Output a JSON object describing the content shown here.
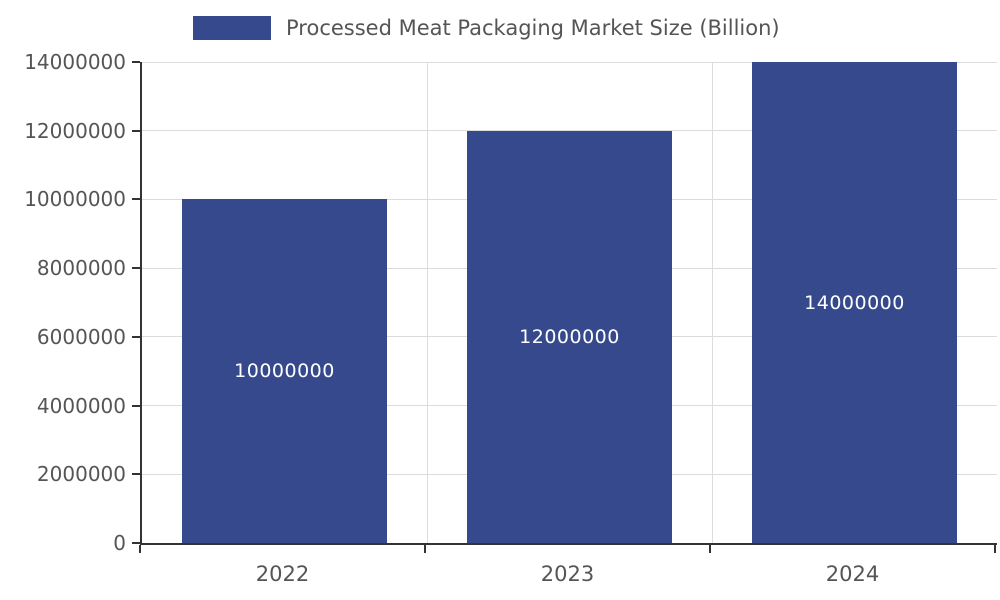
{
  "legend": {
    "label": "Processed Meat Packaging Market Size (Billion)"
  },
  "colors": {
    "bar": "#36498D",
    "grid": "#dcdcdc",
    "axis": "#333333",
    "tick_text": "#555555",
    "value_label": "#ffffff"
  },
  "chart_data": {
    "type": "bar",
    "title": "Processed Meat Packaging Market Size (Billion)",
    "categories": [
      "2022",
      "2023",
      "2024"
    ],
    "values": [
      10000000,
      12000000,
      14000000
    ],
    "bar_labels": [
      "10000000",
      "12000000",
      "14000000"
    ],
    "xlabel": "",
    "ylabel": "",
    "ylim": [
      0,
      14000000
    ],
    "ytick_step": 2000000,
    "ytick_labels": [
      "0",
      "2000000",
      "4000000",
      "6000000",
      "8000000",
      "10000000",
      "12000000",
      "14000000"
    ],
    "grid": true,
    "legend_position": "top"
  }
}
